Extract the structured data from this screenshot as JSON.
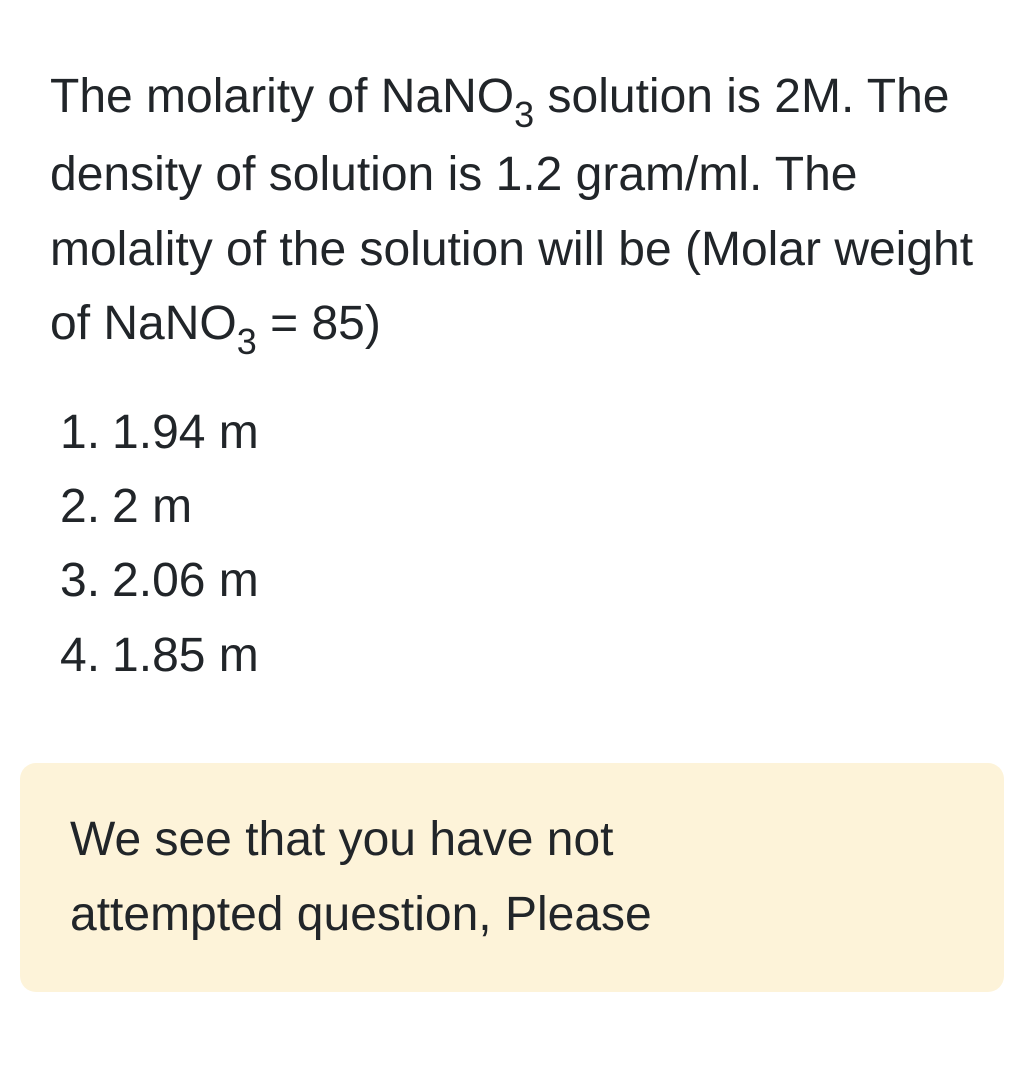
{
  "question": {
    "text_part1": "The molarity of NaNO",
    "subscript1": "3",
    "text_part2": " solution is 2M. The density of solution is 1.2 gram/ml. The molality of the solution will be (Molar weight of NaNO",
    "subscript2": "3",
    "text_part3": " = 85)"
  },
  "options": [
    {
      "number": "1.",
      "text": "1.94 m"
    },
    {
      "number": "2.",
      "text": "2 m"
    },
    {
      "number": "3.",
      "text": "2.06  m"
    },
    {
      "number": "4.",
      "text": "1.85 m"
    }
  ],
  "notice": {
    "line1": "We see that you have not",
    "line2": "attempted question, Please"
  },
  "colors": {
    "text": "#212529",
    "background": "#ffffff",
    "notice_bg": "#fdf3d9"
  },
  "typography": {
    "body_fontsize": 48,
    "line_height": 1.55
  }
}
